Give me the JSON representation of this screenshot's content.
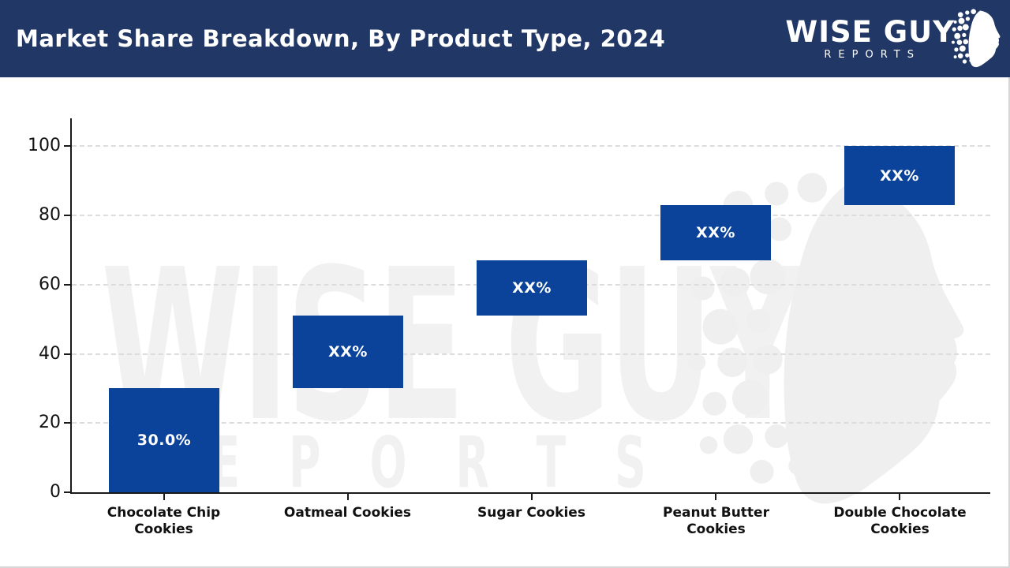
{
  "colors": {
    "header_bg": "#213765",
    "bar": "#0a4399",
    "grid": "#dcdcdc",
    "axis": "#1a1a1a",
    "watermark": "#f1f1f1",
    "title_text": "#ffffff",
    "label_text": "#111111"
  },
  "header": {
    "title": "Market Share Breakdown, By Product Type, 2024",
    "logo": {
      "line1": "WISE GUY",
      "line2": "REPORTS",
      "icon": "head-profile-dots-icon"
    }
  },
  "watermark": {
    "line1": "WISE GUY",
    "line2": "REPORTS",
    "icon": "head-profile-dots-icon"
  },
  "chart_data": {
    "type": "bar",
    "subtype": "stepped-waterfall",
    "title": "Market Share Breakdown, By Product Type, 2024",
    "categories": [
      "Chocolate Chip\nCookies",
      "Oatmeal Cookies",
      "Sugar Cookies",
      "Peanut Butter\nCookies",
      "Double Chocolate\nCookies"
    ],
    "segments": [
      {
        "category": "Chocolate Chip Cookies",
        "start": 0,
        "end": 30,
        "label": "30.0%"
      },
      {
        "category": "Oatmeal Cookies",
        "start": 30,
        "end": 51,
        "label": "XX%"
      },
      {
        "category": "Sugar Cookies",
        "start": 51,
        "end": 67,
        "label": "XX%"
      },
      {
        "category": "Peanut Butter Cookies",
        "start": 67,
        "end": 83,
        "label": "XX%"
      },
      {
        "category": "Double Chocolate Cookies",
        "start": 83,
        "end": 100,
        "label": "XX%"
      }
    ],
    "yticks": [
      0,
      20,
      40,
      60,
      80,
      100
    ],
    "ylim": [
      0,
      108.5
    ],
    "xlabel": "",
    "ylabel": "",
    "grid": "horizontal-dashed",
    "legend": "none",
    "bar_color": "#0a4399"
  }
}
